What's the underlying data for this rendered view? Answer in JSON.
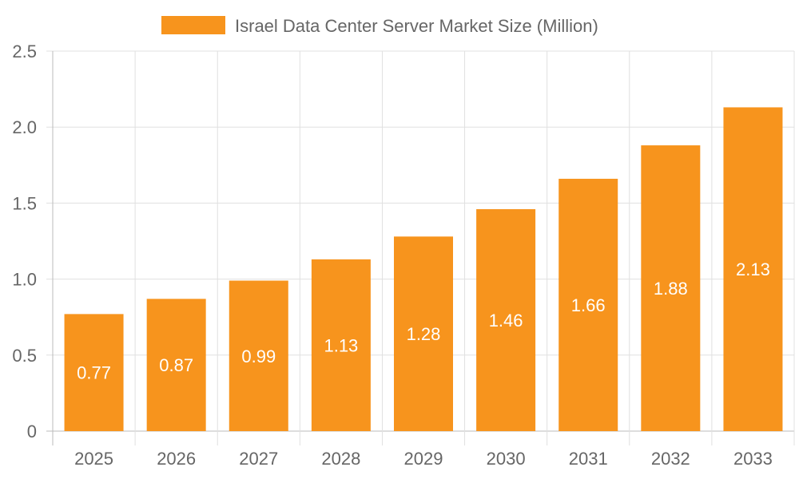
{
  "chart_data": {
    "type": "bar",
    "categories": [
      "2025",
      "2026",
      "2027",
      "2028",
      "2029",
      "2030",
      "2031",
      "2032",
      "2033"
    ],
    "series": [
      {
        "name": "Israel Data Center Server Market Size (Million)",
        "values": [
          0.77,
          0.87,
          0.99,
          1.13,
          1.28,
          1.46,
          1.66,
          1.88,
          2.13
        ]
      }
    ],
    "value_labels": [
      "0.77",
      "0.87",
      "0.99",
      "1.13",
      "1.28",
      "1.46",
      "1.66",
      "1.88",
      "2.13"
    ],
    "y_ticks": [
      "0",
      "0.5",
      "1.0",
      "1.5",
      "2.0",
      "2.5"
    ],
    "ylim": [
      0,
      2.5
    ],
    "grid": true,
    "legend_position": "top",
    "colors": {
      "bar": "#F7941D",
      "grid": "#e0e0e0",
      "text": "#666666"
    }
  }
}
